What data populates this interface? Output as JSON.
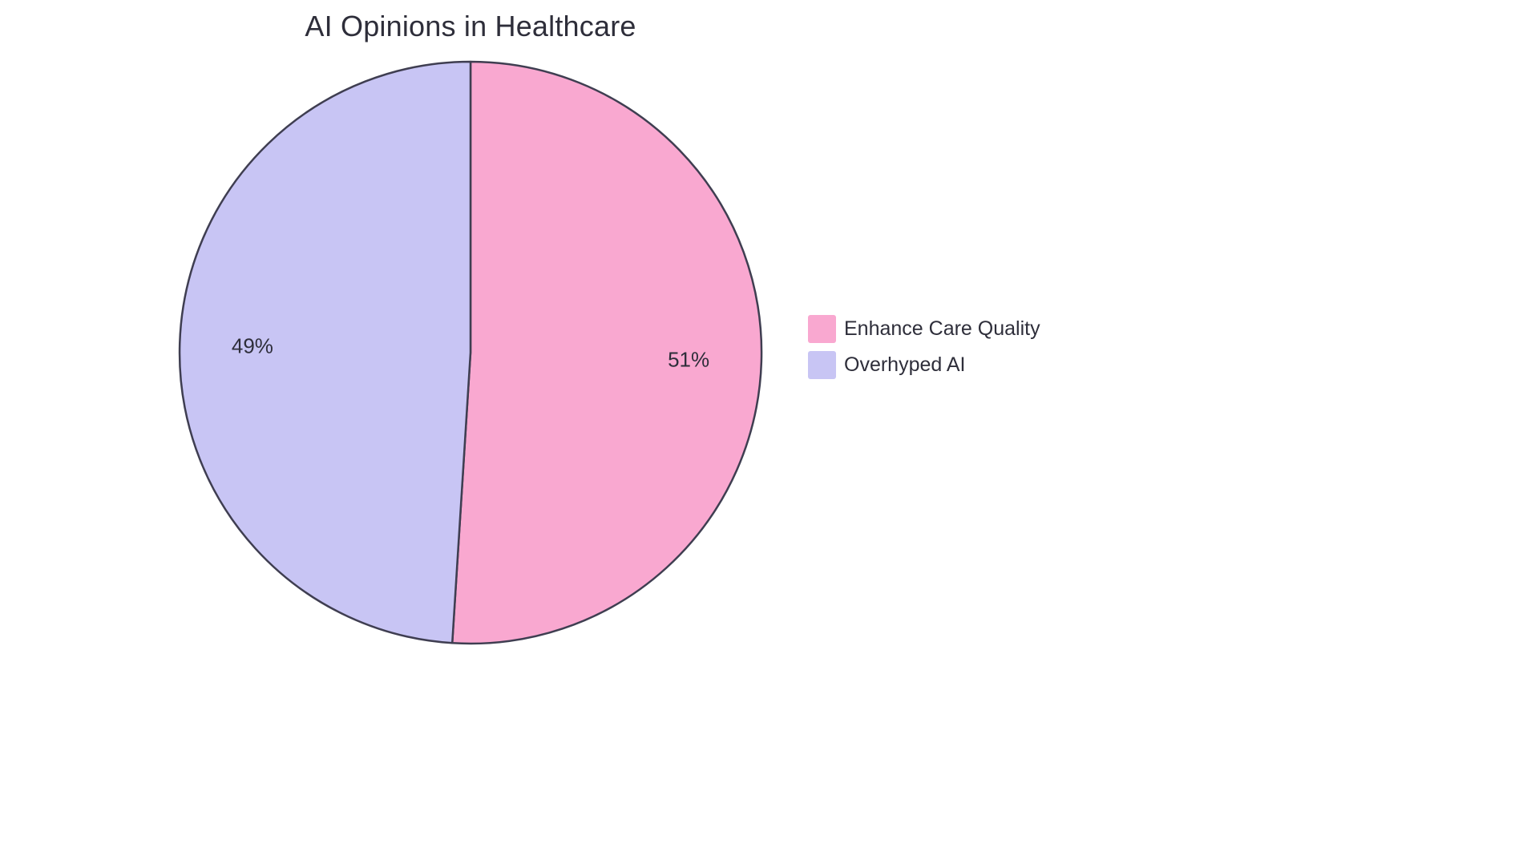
{
  "chart_data": {
    "type": "pie",
    "title": "AI Opinions in Healthcare",
    "labels": [
      "Enhance Care Quality",
      "Overhyped AI"
    ],
    "values": [
      51,
      49
    ],
    "slice_labels": [
      "51%",
      "49%"
    ],
    "colors": [
      "#F9A8D0",
      "#C8C5F4"
    ],
    "stroke_color": "#3F3E51",
    "text_color": "#2E2E3A",
    "background": "#FFFFFF",
    "start_angle": "top",
    "direction": "clockwise",
    "legend_position": "right",
    "grid": false
  }
}
